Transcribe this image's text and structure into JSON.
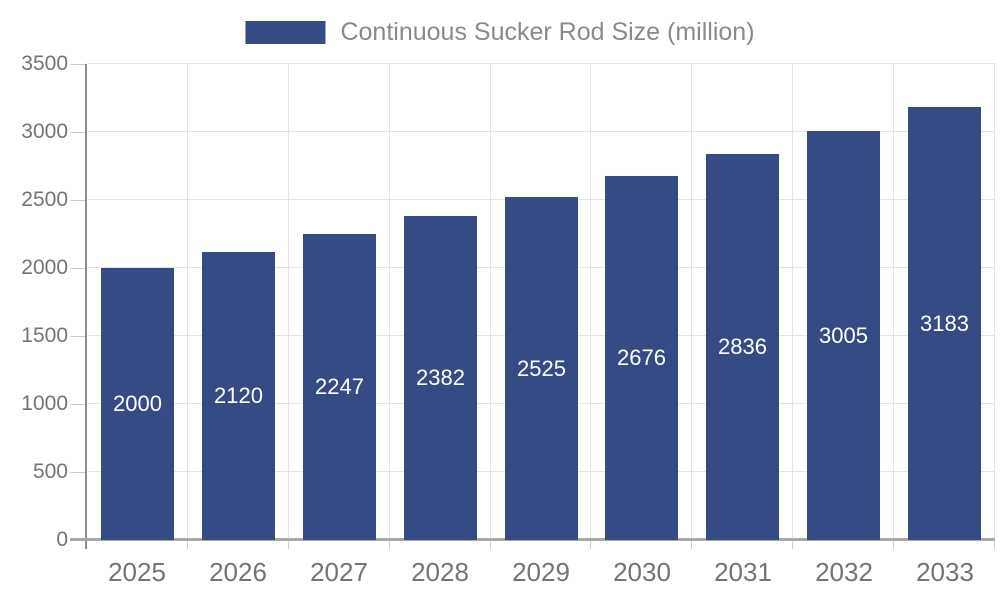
{
  "legend": {
    "label": "Continuous Sucker Rod Size (million)",
    "swatch_color": "#364A85"
  },
  "chart_data": {
    "type": "bar",
    "title": "Continuous Sucker Rod Size (million)",
    "categories": [
      "2025",
      "2026",
      "2027",
      "2028",
      "2029",
      "2030",
      "2031",
      "2032",
      "2033"
    ],
    "series": [
      {
        "name": "Continuous Sucker Rod Size (million)",
        "values": [
          2000,
          2120,
          2247,
          2382,
          2525,
          2676,
          2836,
          3005,
          3183
        ]
      }
    ],
    "bar_value_labels": [
      "2000",
      "2120",
      "2247",
      "2382",
      "2525",
      "2676",
      "2836",
      "3005",
      "3183"
    ],
    "xlabel": "",
    "ylabel": "",
    "ylim": [
      0,
      3500
    ],
    "yticks": [
      0,
      500,
      1000,
      1500,
      2000,
      2500,
      3000,
      3500
    ],
    "grid": true,
    "legend_position": "top-center",
    "colors": {
      "bar": "#364A85",
      "bar_label": "#FFFFFF",
      "grid_line": "#E4E4E4",
      "tick": "#CCCCCC",
      "tick_label": "#747474",
      "y_axis_line": "#8C8C8C",
      "x_axis_line": "#A8A8A8",
      "legend_text": "#8A8A8A",
      "background": "#FFFFFF"
    }
  }
}
